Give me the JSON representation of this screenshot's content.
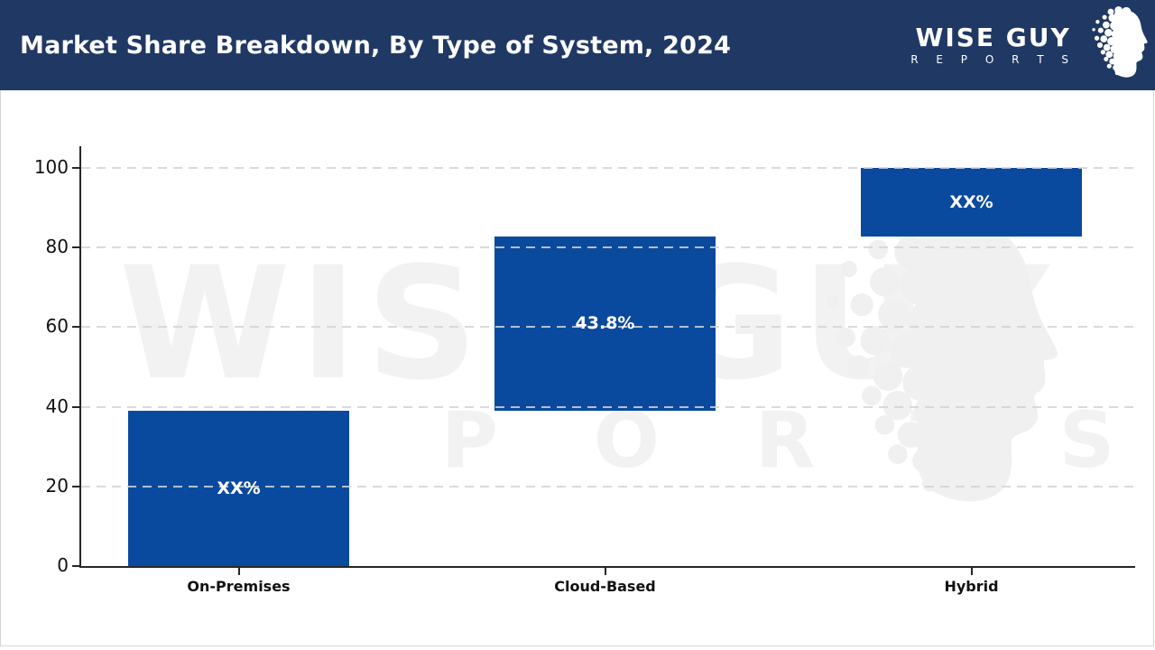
{
  "header": {
    "title": "Market Share Breakdown, By Type of System, 2024",
    "bg_color": "#203864",
    "logo": {
      "line1": "WISE GUY",
      "line2": "R E P O R T S"
    }
  },
  "watermark": {
    "line1": "WISE GUY",
    "line2": "R E P O R T S"
  },
  "chart_data": {
    "type": "bar",
    "subtype": "floating-waterfall",
    "title": "Market Share Breakdown, By Type of System, 2024",
    "categories": [
      "On-Premises",
      "Cloud-Based",
      "Hybrid"
    ],
    "bars": [
      {
        "category": "On-Premises",
        "start": 0,
        "end": 39,
        "label": "XX%"
      },
      {
        "category": "Cloud-Based",
        "start": 39,
        "end": 82.8,
        "label": "43.8%"
      },
      {
        "category": "Hybrid",
        "start": 82.8,
        "end": 100,
        "label": "XX%"
      }
    ],
    "xlabel": "",
    "ylabel": "",
    "ylim": [
      0,
      100
    ],
    "yticks": [
      0,
      20,
      40,
      60,
      80,
      100
    ],
    "grid": "horizontal dashed, drawn above bars",
    "legend": "none",
    "bar_color": "#0a4a9e",
    "grid_color": "#d3d3d3",
    "axis_color": "#262626"
  }
}
